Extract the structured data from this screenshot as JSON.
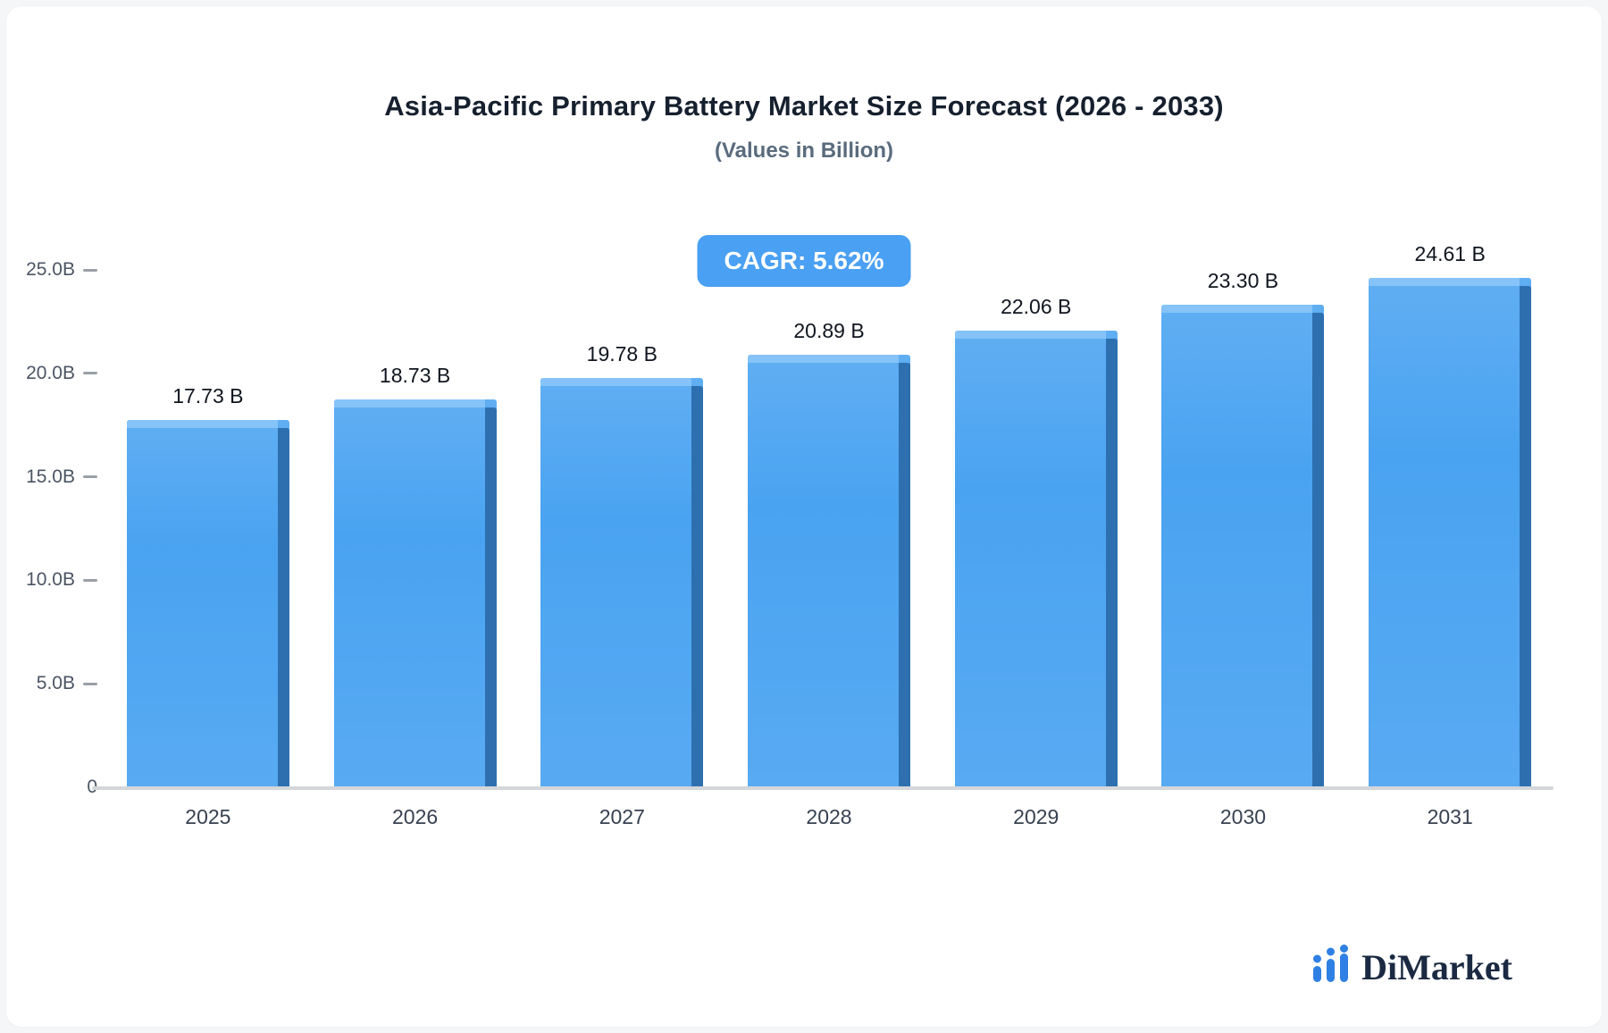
{
  "header": {
    "title": "Asia-Pacific Primary Battery Market Size Forecast (2026 - 2033)",
    "subtitle": "(Values in Billion)"
  },
  "badge": "CAGR: 5.62%",
  "chart_data": {
    "type": "bar",
    "categories": [
      "2025",
      "2026",
      "2027",
      "2028",
      "2029",
      "2030",
      "2031"
    ],
    "values": [
      17.73,
      18.73,
      19.78,
      20.89,
      22.06,
      23.3,
      24.61
    ],
    "value_labels": [
      "17.73 B",
      "18.73 B",
      "19.78 B",
      "20.89 B",
      "22.06 B",
      "23.30 B",
      "24.61 B"
    ],
    "title": "Asia-Pacific Primary Battery Market Size Forecast (2026 - 2033)",
    "subtitle": "(Values in Billion)",
    "xlabel": "",
    "ylabel": "",
    "ylim": [
      0,
      25
    ],
    "yticks": [
      {
        "value": 0,
        "label": "0"
      },
      {
        "value": 5,
        "label": "5.0B"
      },
      {
        "value": 10,
        "label": "10.0B"
      },
      {
        "value": 15,
        "label": "15.0B"
      },
      {
        "value": 20,
        "label": "20.0B"
      },
      {
        "value": 25,
        "label": "25.0B"
      }
    ],
    "grid": false,
    "legend": false,
    "annotations": [
      "CAGR: 5.62%"
    ]
  },
  "colors": {
    "bar_front": "#4AA3F1",
    "bar_side": "#2D6FAF",
    "bar_top": "#85C3F8",
    "badge_bg": "#4AA0F2",
    "axis_line": "#D4D6D9",
    "title_text": "#16202E",
    "subtitle_text": "#5A6B7D",
    "logo_text": "#1B2A42",
    "logo_icon": "#2F80E4"
  },
  "logo": {
    "text": "DiMarket"
  }
}
